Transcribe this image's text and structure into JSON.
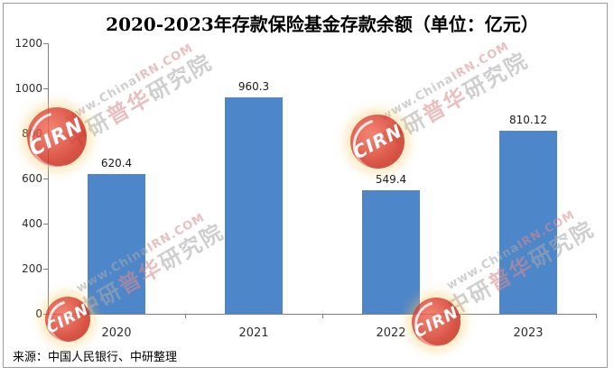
{
  "title": "2020-2023年存款保险基金存款余额（单位：亿元）",
  "source_note": "来源：中国人民银行、中研整理",
  "chart_data": {
    "type": "bar",
    "title": "2020-2023年存款保险基金存款余额（单位：亿元）",
    "categories": [
      "2020",
      "2021",
      "2022",
      "2023"
    ],
    "values": [
      620.4,
      960.3,
      549.4,
      810.12
    ],
    "xlabel": "",
    "ylabel": "",
    "ylim": [
      0,
      1200
    ],
    "yticks": [
      1200,
      1000,
      800,
      600,
      400,
      200,
      0
    ],
    "grid": false,
    "legend": "none",
    "bar_color": "#4D86C9"
  },
  "watermark": {
    "url_prefix": "www.China",
    "url_suffix": "IRN.COM",
    "cn_part1": "中研",
    "cn_part2": "普华",
    "cn_part3": "研究院",
    "logo_text": "CIRN",
    "gray_color": "#a9a9a9",
    "red_color": "#d98c8c",
    "logo_red_color": "#d02f1d"
  }
}
